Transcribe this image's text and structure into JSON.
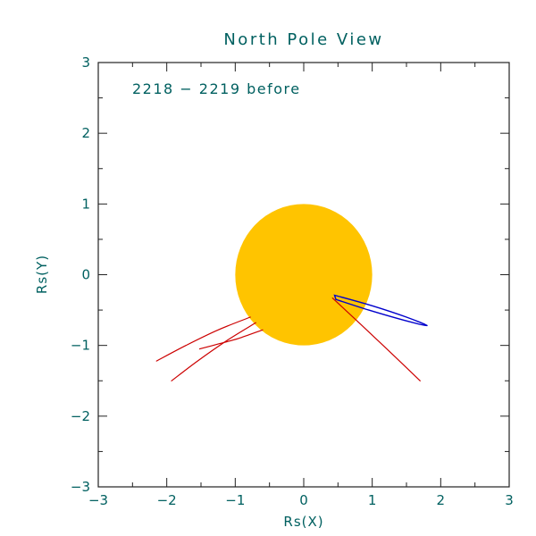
{
  "title": "North Pole View",
  "chart_data": {
    "type": "line",
    "title": "North Pole View",
    "annotation": "2218 − 2219 before",
    "xlabel": "Rs(X)",
    "ylabel": "Rs(Y)",
    "xlim": [
      -3,
      3
    ],
    "ylim": [
      -3,
      3
    ],
    "xticks": [
      -3,
      -2,
      -1,
      0,
      1,
      2,
      3
    ],
    "yticks": [
      -3,
      -2,
      -1,
      0,
      1,
      2,
      3
    ],
    "minor_tick_step": 0.5,
    "grid": false,
    "legend": "none",
    "background": "#ffffff",
    "colors": {
      "text": "#006060",
      "axis": "#222222",
      "sun": "#FFC400",
      "field_line": "#CC0000",
      "flux_rope": "#0000CC"
    },
    "sun": {
      "x": 0,
      "y": 0,
      "radius": 1
    },
    "series": [
      {
        "name": "field-line-left-1",
        "type": "open_curve",
        "color": "field_line",
        "points": [
          [
            -0.78,
            -0.6
          ],
          [
            -1.25,
            -0.78
          ],
          [
            -1.72,
            -1.0
          ],
          [
            -2.15,
            -1.22
          ]
        ]
      },
      {
        "name": "field-line-left-2",
        "type": "open_curve",
        "color": "field_line",
        "points": [
          [
            -0.7,
            -0.68
          ],
          [
            -1.12,
            -0.93
          ],
          [
            -1.55,
            -1.22
          ],
          [
            -1.93,
            -1.5
          ]
        ]
      },
      {
        "name": "field-line-left-3",
        "type": "open_curve",
        "color": "field_line",
        "points": [
          [
            -0.6,
            -0.78
          ],
          [
            -0.95,
            -0.9
          ],
          [
            -1.25,
            -0.98
          ],
          [
            -1.52,
            -1.05
          ]
        ]
      },
      {
        "name": "field-line-right",
        "type": "open_curve",
        "color": "field_line",
        "points": [
          [
            0.42,
            -0.33
          ],
          [
            1.05,
            -0.9
          ],
          [
            1.7,
            -1.5
          ]
        ]
      },
      {
        "name": "flux-rope-loop",
        "type": "closed_curve",
        "color": "flux_rope",
        "points": [
          [
            0.45,
            -0.29
          ],
          [
            1.0,
            -0.44
          ],
          [
            1.5,
            -0.6
          ],
          [
            1.8,
            -0.72
          ],
          [
            1.45,
            -0.64
          ],
          [
            0.95,
            -0.5
          ],
          [
            0.47,
            -0.35
          ]
        ]
      }
    ]
  }
}
